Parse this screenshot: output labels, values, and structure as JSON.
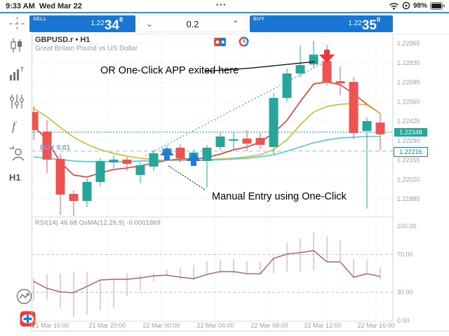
{
  "status_bar": {
    "time": "9:33 AM",
    "date": "Wed Mar 22",
    "battery": "98%",
    "more_glyph": "•••"
  },
  "trade_bar": {
    "sell_label": "SELL",
    "sell_price_prefix": "1.22",
    "sell_price_big": "34",
    "sell_price_sup": "8",
    "buy_label": "BUY",
    "buy_price_prefix": "1.22",
    "buy_price_big": "35",
    "buy_price_sup": "0",
    "volume": "0.2",
    "volume_down_glyph": "⌄",
    "volume_up_glyph": "⌃"
  },
  "sidebar": {
    "timeframe": "H1"
  },
  "chart_header": {
    "symbol": "GBPUSD.r • H1",
    "description": "Great Britain Pound vs US Dollar"
  },
  "annotations": {
    "exit_note": "OR One-Click APP exited here",
    "entry_note": "Manual Entry using One-Click",
    "order_label": "BUY 0.01"
  },
  "price_badges": {
    "bid": "1.22348",
    "order": "1.22216"
  },
  "indicator_label": "RSI(14) 46.68 OsMA(12,26,9) -0.0001869",
  "colors": {
    "accent_blue": "#1976d2",
    "bull": "#26a69a",
    "bear": "#ef5350",
    "ma_fast": "#e53935",
    "ma_slow": "#c9bd2e",
    "ma_signal": "#53c6e8",
    "rsi_line": "#aa5a6e",
    "osma": "#b4a0d8",
    "bid_line": "#26a69a",
    "order_line": "#9fc7f0",
    "marker_up": "#2079de",
    "marker_down": "#e53935",
    "grid": "#dcdcdc",
    "axis_text": "#9e9e9e",
    "trend": "#5e9be0"
  },
  "chart_data": {
    "type": "candlestick",
    "symbol": "GBPUSD",
    "timeframe": "H1",
    "price_axis": {
      "ticks": [
        "1.22965",
        "1.22830",
        "1.22695",
        "1.22560",
        "1.22425",
        "1.22290",
        "1.22155",
        "1.22020",
        "1.21885"
      ]
    },
    "time_ticks": [
      "21 Mar 16:00",
      "21 Mar 20:00",
      "22 Mar 00:00",
      "22 Mar 04:00",
      "22 Mar 08:00",
      "22 Mar 12:00",
      "22 Mar 16:00"
    ],
    "candles": [
      {
        "o": 1.22488,
        "h": 1.22527,
        "l": 1.22294,
        "c": 1.22362
      },
      {
        "o": 1.22352,
        "h": 1.2243,
        "l": 1.22065,
        "c": 1.22157
      },
      {
        "o": 1.22162,
        "h": 1.22196,
        "l": 1.21773,
        "c": 1.21914
      },
      {
        "o": 1.21919,
        "h": 1.21943,
        "l": 1.21768,
        "c": 1.2187
      },
      {
        "o": 1.2187,
        "h": 1.22026,
        "l": 1.21827,
        "c": 1.22002
      },
      {
        "o": 1.22002,
        "h": 1.22167,
        "l": 1.21973,
        "c": 1.22148
      },
      {
        "o": 1.22138,
        "h": 1.22187,
        "l": 1.22099,
        "c": 1.22157
      },
      {
        "o": 1.22157,
        "h": 1.22177,
        "l": 1.2208,
        "c": 1.22128
      },
      {
        "o": 1.2205,
        "h": 1.22138,
        "l": 1.21992,
        "c": 1.22118
      },
      {
        "o": 1.22109,
        "h": 1.22226,
        "l": 1.2208,
        "c": 1.22201
      },
      {
        "o": 1.22187,
        "h": 1.22255,
        "l": 1.22148,
        "c": 1.22235
      },
      {
        "o": 1.2224,
        "h": 1.22264,
        "l": 1.22138,
        "c": 1.22167
      },
      {
        "o": 1.22157,
        "h": 1.22226,
        "l": 1.22118,
        "c": 1.22206
      },
      {
        "o": 1.22148,
        "h": 1.2226,
        "l": 1.21963,
        "c": 1.2224
      },
      {
        "o": 1.22245,
        "h": 1.22342,
        "l": 1.22221,
        "c": 1.22318
      },
      {
        "o": 1.22289,
        "h": 1.22347,
        "l": 1.2223,
        "c": 1.22299
      },
      {
        "o": 1.22303,
        "h": 1.22362,
        "l": 1.22216,
        "c": 1.22269
      },
      {
        "o": 1.22308,
        "h": 1.22342,
        "l": 1.2223,
        "c": 1.2226
      },
      {
        "o": 1.22245,
        "h": 1.2262,
        "l": 1.22196,
        "c": 1.22586
      },
      {
        "o": 1.22586,
        "h": 1.2279,
        "l": 1.22561,
        "c": 1.22756
      },
      {
        "o": 1.22756,
        "h": 1.2295,
        "l": 1.22731,
        "c": 1.22814
      },
      {
        "o": 1.22819,
        "h": 1.22984,
        "l": 1.22795,
        "c": 1.22887
      },
      {
        "o": 1.22843,
        "h": 1.22955,
        "l": 1.22673,
        "c": 1.22693
      },
      {
        "o": 1.22702,
        "h": 1.22804,
        "l": 1.22605,
        "c": 1.22688
      },
      {
        "o": 1.22697,
        "h": 1.22731,
        "l": 1.22298,
        "c": 1.22342
      },
      {
        "o": 1.22357,
        "h": 1.22449,
        "l": 1.21817,
        "c": 1.22425
      },
      {
        "o": 1.22415,
        "h": 1.22478,
        "l": 1.22221,
        "c": 1.22333
      }
    ],
    "ma_lines": [
      {
        "name": "ma-fast",
        "values": [
          1.22391,
          1.22294,
          1.22138,
          1.2205,
          1.22036,
          1.22065,
          1.22089,
          1.22099,
          1.22114,
          1.22133,
          1.22152,
          1.22162,
          1.22162,
          1.22172,
          1.22196,
          1.22226,
          1.22245,
          1.22279,
          1.22342,
          1.2243,
          1.22561,
          1.22683,
          1.22697,
          1.22678,
          1.22615,
          1.22542,
          1.22478
        ]
      },
      {
        "name": "ma-slow",
        "values": [
          1.22513,
          1.22454,
          1.22381,
          1.22313,
          1.22264,
          1.22226,
          1.22201,
          1.22182,
          1.22167,
          1.22157,
          1.22152,
          1.22152,
          1.22152,
          1.22157,
          1.22162,
          1.22167,
          1.22177,
          1.22191,
          1.22226,
          1.22294,
          1.22401,
          1.22488,
          1.22527,
          1.22542,
          1.22547,
          1.22537,
          1.22478
        ]
      },
      {
        "name": "ma-signal",
        "values": [
          1.22177,
          1.22167,
          1.22157,
          1.22148,
          1.22143,
          1.22143,
          1.22143,
          1.22143,
          1.22148,
          1.22148,
          1.22152,
          1.22152,
          1.22152,
          1.22152,
          1.22157,
          1.22162,
          1.22167,
          1.22177,
          1.22191,
          1.22216,
          1.22245,
          1.22274,
          1.22294,
          1.22308,
          1.22313,
          1.22318,
          1.22318
        ]
      }
    ],
    "levels": [
      {
        "price": 1.22348,
        "style": "dotted",
        "role": "bid"
      },
      {
        "price": 1.22216,
        "style": "dashed",
        "role": "order"
      }
    ],
    "trend_line": {
      "start_index": 8.4,
      "start_price": 1.22185,
      "end_index": 21.8,
      "end_price": 1.22833
    },
    "markers": [
      {
        "shape": "up",
        "index": 10,
        "price": 1.2224
      },
      {
        "shape": "up",
        "index": 12,
        "price": 1.22201
      },
      {
        "shape": "down",
        "index": 22,
        "price": 1.22829
      }
    ],
    "rsi": {
      "ticks": [
        "100.00",
        "70.00",
        "30.00",
        "0.00"
      ],
      "levels": [
        70,
        30
      ],
      "values": [
        41.5,
        34.1,
        30.4,
        29.6,
        36.3,
        43.0,
        43.7,
        43.7,
        45.2,
        47.4,
        48.1,
        45.9,
        44.4,
        48.9,
        51.9,
        51.9,
        49.6,
        49.6,
        65.9,
        70.4,
        71.9,
        74.1,
        62.2,
        62.2,
        45.9,
        49.6,
        46.7
      ],
      "spikes": [
        [
          45,
          21
        ],
        [
          49,
          22
        ],
        [
          50,
          13
        ],
        [
          52,
          4
        ],
        [
          52,
          6
        ],
        [
          44,
          11
        ],
        [
          44,
          13
        ],
        [
          50,
          26
        ],
        [
          49,
          32
        ],
        [
          50,
          41
        ],
        [
          54,
          47
        ],
        [
          56,
          44
        ],
        [
          59,
          43
        ],
        [
          63,
          50
        ],
        [
          64,
          50
        ],
        [
          65,
          49
        ],
        [
          63,
          49
        ],
        [
          62,
          49
        ],
        [
          67,
          50
        ],
        [
          82,
          52
        ],
        [
          87,
          52
        ],
        [
          93,
          53
        ],
        [
          89,
          62
        ],
        [
          85,
          63
        ],
        [
          65,
          45
        ],
        [
          64,
          49
        ],
        [
          56,
          44
        ]
      ]
    }
  }
}
